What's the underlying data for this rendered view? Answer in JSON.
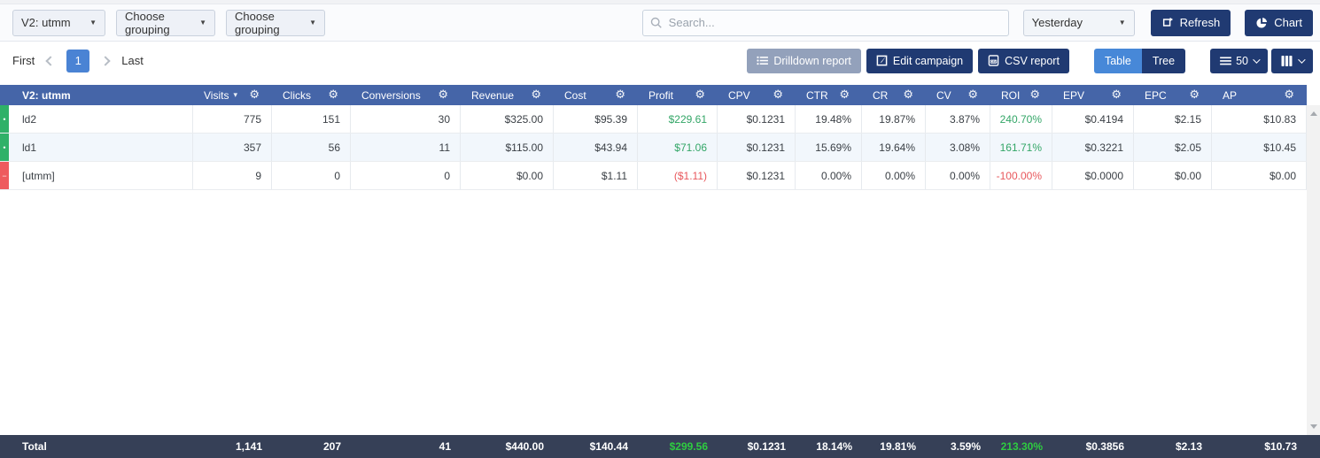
{
  "colors": {
    "navy": "#203a72",
    "headerblue": "#4565a8",
    "totalnavy": "#364057",
    "activeblue": "#4788d8",
    "positive": "#33a667",
    "negative": "#e8575c",
    "totalpositive": "#2ecc40",
    "markergreen": "#2fb168",
    "markerred": "#ee5a5e"
  },
  "toolbar": {
    "campaign_select": "V2: utmm",
    "grouping_select_1": "Choose grouping",
    "grouping_select_2": "Choose grouping",
    "search_placeholder": "Search...",
    "date_range": "Yesterday",
    "refresh_label": "Refresh",
    "chart_label": "Chart"
  },
  "pagination": {
    "first": "First",
    "current_page": "1",
    "last": "Last"
  },
  "actions": {
    "drilldown": "Drilldown report",
    "edit_campaign": "Edit campaign",
    "csv_report": "CSV report",
    "table_view": "Table",
    "tree_view": "Tree",
    "rows_per_page": "50"
  },
  "table": {
    "columns": [
      {
        "key": "name",
        "label": "V2: utmm",
        "sorted": false
      },
      {
        "key": "visits",
        "label": "Visits",
        "sorted": true
      },
      {
        "key": "clicks",
        "label": "Clicks",
        "sorted": false
      },
      {
        "key": "conversions",
        "label": "Conversions",
        "sorted": false
      },
      {
        "key": "revenue",
        "label": "Revenue",
        "sorted": false
      },
      {
        "key": "cost",
        "label": "Cost",
        "sorted": false
      },
      {
        "key": "profit",
        "label": "Profit",
        "sorted": false
      },
      {
        "key": "cpv",
        "label": "CPV",
        "sorted": false
      },
      {
        "key": "ctr",
        "label": "CTR",
        "sorted": false
      },
      {
        "key": "cr",
        "label": "CR",
        "sorted": false
      },
      {
        "key": "cv",
        "label": "CV",
        "sorted": false
      },
      {
        "key": "roi",
        "label": "ROI",
        "sorted": false
      },
      {
        "key": "epv",
        "label": "EPV",
        "sorted": false
      },
      {
        "key": "epc",
        "label": "EPC",
        "sorted": false
      },
      {
        "key": "ap",
        "label": "AP",
        "sorted": false
      }
    ],
    "rows": [
      {
        "name": "ld2",
        "marker": {
          "status": "positive",
          "symbol": "•"
        },
        "values": {
          "visits": "775",
          "clicks": "151",
          "conversions": "30",
          "revenue": "$325.00",
          "cost": "$95.39",
          "profit": "$229.61",
          "cpv": "$0.1231",
          "ctr": "19.48%",
          "cr": "19.87%",
          "cv": "3.87%",
          "roi": "240.70%",
          "epv": "$0.4194",
          "epc": "$2.15",
          "ap": "$10.83"
        },
        "tones": {
          "profit": "positive",
          "roi": "positive"
        }
      },
      {
        "name": "ld1",
        "marker": {
          "status": "positive",
          "symbol": "•"
        },
        "values": {
          "visits": "357",
          "clicks": "56",
          "conversions": "11",
          "revenue": "$115.00",
          "cost": "$43.94",
          "profit": "$71.06",
          "cpv": "$0.1231",
          "ctr": "15.69%",
          "cr": "19.64%",
          "cv": "3.08%",
          "roi": "161.71%",
          "epv": "$0.3221",
          "epc": "$2.05",
          "ap": "$10.45"
        },
        "tones": {
          "profit": "positive",
          "roi": "positive"
        }
      },
      {
        "name": "[utmm]",
        "marker": {
          "status": "negative",
          "symbol": "−"
        },
        "values": {
          "visits": "9",
          "clicks": "0",
          "conversions": "0",
          "revenue": "$0.00",
          "cost": "$1.11",
          "profit": "($1.11)",
          "cpv": "$0.1231",
          "ctr": "0.00%",
          "cr": "0.00%",
          "cv": "0.00%",
          "roi": "-100.00%",
          "epv": "$0.0000",
          "epc": "$0.00",
          "ap": "$0.00"
        },
        "tones": {
          "profit": "negative",
          "roi": "negative"
        }
      }
    ],
    "total": {
      "label": "Total",
      "values": {
        "visits": "1,141",
        "clicks": "207",
        "conversions": "41",
        "revenue": "$440.00",
        "cost": "$140.44",
        "profit": "$299.56",
        "cpv": "$0.1231",
        "ctr": "18.14%",
        "cr": "19.81%",
        "cv": "3.59%",
        "roi": "213.30%",
        "epv": "$0.3856",
        "epc": "$2.13",
        "ap": "$10.73"
      },
      "tones": {
        "profit": "positive",
        "roi": "positive"
      }
    }
  }
}
